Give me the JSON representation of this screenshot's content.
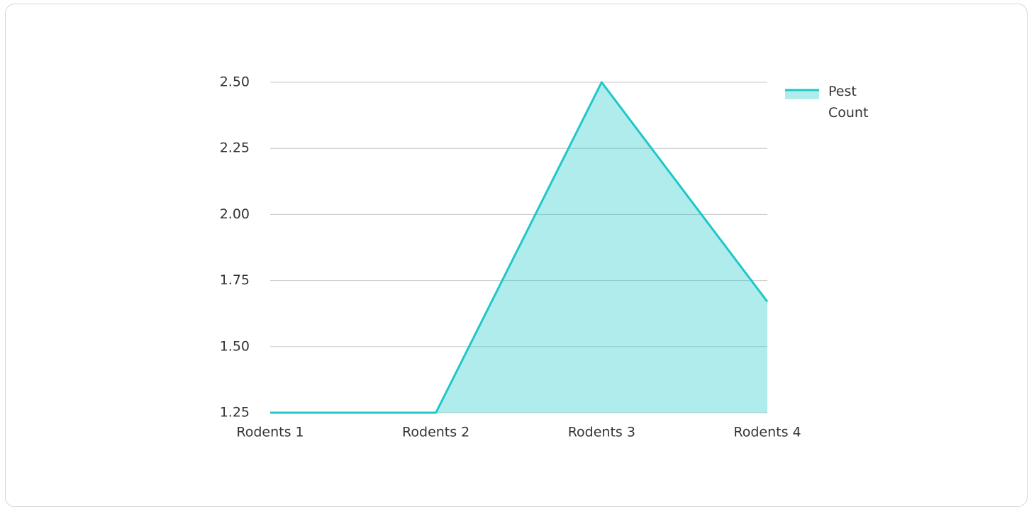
{
  "chart_data": {
    "type": "area",
    "categories": [
      "Rodents 1",
      "Rodents 2",
      "Rodents 3",
      "Rodents 4"
    ],
    "series": [
      {
        "name": "Pest Count",
        "color": "#1ec8c8",
        "values": [
          1.25,
          1.25,
          2.5,
          1.67
        ]
      }
    ],
    "ylim": [
      1.25,
      2.5
    ],
    "yticks": [
      1.25,
      {
        "value": 1.5,
        "label": "1.50"
      },
      1.75,
      {
        "value": 2,
        "label": "2.00"
      },
      2.25,
      {
        "value": 2.5,
        "label": "2.50"
      }
    ],
    "grid": true,
    "legend": "right"
  }
}
